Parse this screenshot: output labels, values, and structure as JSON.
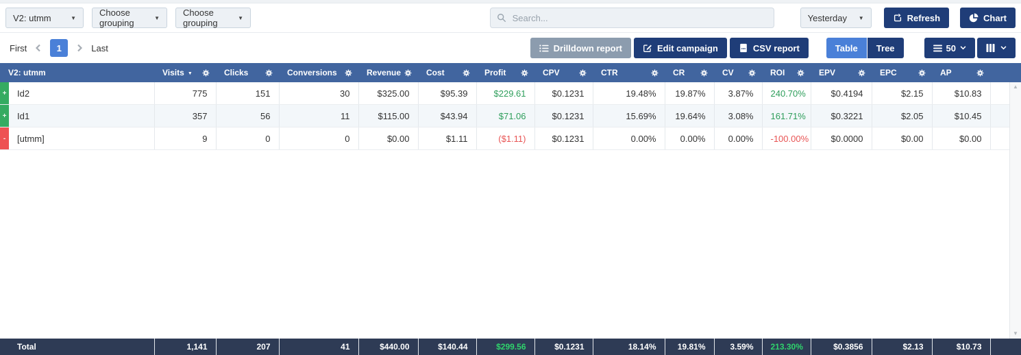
{
  "colors": {
    "accent_blue": "#4a80d8",
    "header_blue": "#41659f",
    "dark_navy": "#1f3d78",
    "total_bar": "#2e3b55",
    "positive_green": "#2e9e5b",
    "negative_red": "#e85454",
    "total_green": "#2fd46c",
    "indicator_green": "#35ab61",
    "indicator_red": "#ee5253"
  },
  "toolbar": {
    "selects": [
      {
        "value": "V2: utmm"
      },
      {
        "value": "Choose grouping"
      },
      {
        "value": "Choose grouping"
      }
    ],
    "search_placeholder": "Search...",
    "date_range": "Yesterday",
    "refresh_label": "Refresh",
    "chart_label": "Chart"
  },
  "pagination": {
    "first": "First",
    "current": "1",
    "last": "Last"
  },
  "actions": {
    "drilldown_label": "Drilldown report",
    "edit_label": "Edit campaign",
    "csv_label": "CSV report",
    "table_label": "Table",
    "tree_label": "Tree",
    "rows_per_page": "50"
  },
  "table": {
    "columns": [
      {
        "label": "V2: utmm",
        "gear": false
      },
      {
        "label": "Visits",
        "gear": true,
        "sort": "desc"
      },
      {
        "label": "Clicks",
        "gear": true
      },
      {
        "label": "Conversions",
        "gear": true
      },
      {
        "label": "Revenue",
        "gear": true
      },
      {
        "label": "Cost",
        "gear": true
      },
      {
        "label": "Profit",
        "gear": true
      },
      {
        "label": "CPV",
        "gear": true
      },
      {
        "label": "CTR",
        "gear": true
      },
      {
        "label": "CR",
        "gear": true
      },
      {
        "label": "CV",
        "gear": true
      },
      {
        "label": "ROI",
        "gear": true
      },
      {
        "label": "EPV",
        "gear": true
      },
      {
        "label": "EPC",
        "gear": true
      },
      {
        "label": "AP",
        "gear": true
      }
    ],
    "rows": [
      {
        "name": "Id2",
        "status": "positive",
        "status_glyph": "+",
        "cells": [
          "775",
          "151",
          "30",
          "$325.00",
          "$95.39",
          {
            "v": "$229.61",
            "c": "pos"
          },
          "$0.1231",
          "19.48%",
          "19.87%",
          "3.87%",
          {
            "v": "240.70%",
            "c": "pos"
          },
          "$0.4194",
          "$2.15",
          "$10.83"
        ]
      },
      {
        "name": "Id1",
        "status": "positive",
        "status_glyph": "+",
        "cells": [
          "357",
          "56",
          "11",
          "$115.00",
          "$43.94",
          {
            "v": "$71.06",
            "c": "pos"
          },
          "$0.1231",
          "15.69%",
          "19.64%",
          "3.08%",
          {
            "v": "161.71%",
            "c": "pos"
          },
          "$0.3221",
          "$2.05",
          "$10.45"
        ]
      },
      {
        "name": "[utmm]",
        "status": "negative",
        "status_glyph": "-",
        "cells": [
          "9",
          "0",
          "0",
          "$0.00",
          "$1.11",
          {
            "v": "($1.11)",
            "c": "neg"
          },
          "$0.1231",
          "0.00%",
          "0.00%",
          "0.00%",
          {
            "v": "-100.00%",
            "c": "neg"
          },
          "$0.0000",
          "$0.00",
          "$0.00"
        ]
      }
    ],
    "total": {
      "label": "Total",
      "cells": [
        "1,141",
        "207",
        "41",
        "$440.00",
        "$140.44",
        {
          "v": "$299.56",
          "c": "total-pos"
        },
        "$0.1231",
        "18.14%",
        "19.81%",
        "3.59%",
        {
          "v": "213.30%",
          "c": "total-pos"
        },
        "$0.3856",
        "$2.13",
        "$10.73"
      ]
    }
  }
}
